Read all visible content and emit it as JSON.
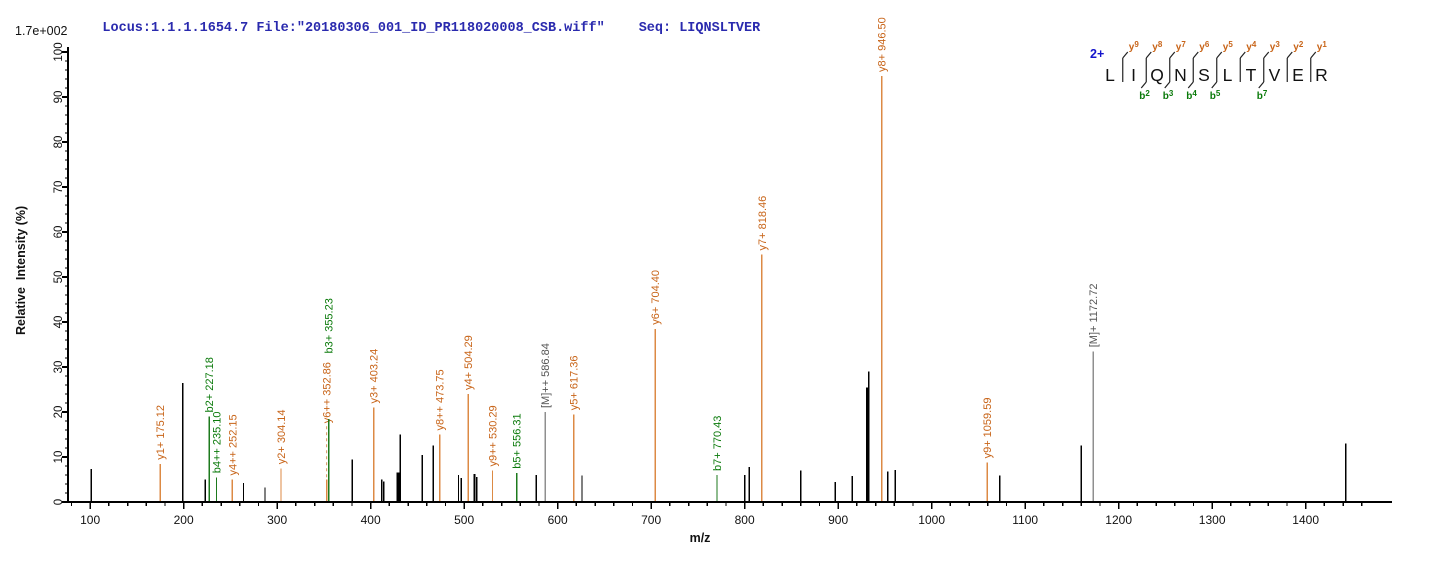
{
  "header": {
    "locus_file": "Locus:1.1.1.1654.7 File:\"20180306_001_ID_PR118020008_CSB.wiff\"",
    "seq_label": "Seq: LIQNSLTVER"
  },
  "scale_note": "1.7e+002",
  "colors": {
    "header_text": "#2a2aae",
    "y_ion_label": "#c86418",
    "y_ion_line": "#dc8a44",
    "b_ion_label": "#0a7a0a",
    "b_ion_line": "#1d7a1d",
    "unassigned_line": "#000000",
    "precursor_label": "#555555",
    "precursor_line": "#8f8f8f",
    "axis": "#000000",
    "charge_label": "#1414cc",
    "residue_text": "#111111"
  },
  "sequence_annotation": {
    "charge": "2+",
    "residues": [
      "L",
      "I",
      "Q",
      "N",
      "S",
      "L",
      "T",
      "V",
      "E",
      "R"
    ],
    "gaps": [
      {
        "y": {
          "ion": "y",
          "num": "9"
        }
      },
      {
        "y": {
          "ion": "y",
          "num": "8"
        },
        "b": {
          "ion": "b",
          "num": "2"
        }
      },
      {
        "y": {
          "ion": "y",
          "num": "7"
        },
        "b": {
          "ion": "b",
          "num": "3"
        }
      },
      {
        "y": {
          "ion": "y",
          "num": "6"
        },
        "b": {
          "ion": "b",
          "num": "4"
        }
      },
      {
        "y": {
          "ion": "y",
          "num": "5"
        },
        "b": {
          "ion": "b",
          "num": "5"
        }
      },
      {
        "y": {
          "ion": "y",
          "num": "4"
        }
      },
      {
        "y": {
          "ion": "y",
          "num": "3"
        },
        "b": {
          "ion": "b",
          "num": "7"
        }
      },
      {
        "y": {
          "ion": "y",
          "num": "2"
        }
      },
      {
        "y": {
          "ion": "y",
          "num": "1"
        }
      }
    ]
  },
  "chart_data": {
    "type": "bar",
    "subtype": "ms2-stick-spectrum",
    "title": "",
    "xlabel": "m/z",
    "ylabel": "Relative  Intensity (%)",
    "absolute_scale": "1.7e+002",
    "xlim": [
      87,
      1487
    ],
    "ylim": [
      0,
      100
    ],
    "x_ticks_major": [
      100,
      200,
      300,
      400,
      500,
      600,
      700,
      800,
      900,
      1000,
      1100,
      1200,
      1300,
      1400
    ],
    "x_minor_step": 20,
    "x_minor_start": 80,
    "x_minor_end": 1460,
    "y_ticks_major": [
      0,
      10,
      20,
      30,
      40,
      50,
      60,
      70,
      80,
      90,
      100
    ],
    "y_minor_step": 2,
    "grid": false,
    "legend": false,
    "peaks": [
      {
        "mz": 101,
        "pct": 7.3,
        "s": "u"
      },
      {
        "mz": 175.12,
        "pct": 8.5,
        "s": "y",
        "label": "y1+ 175.12"
      },
      {
        "mz": 199,
        "pct": 26.5,
        "s": "u"
      },
      {
        "mz": 223,
        "pct": 5,
        "s": "u"
      },
      {
        "mz": 227.18,
        "pct": 19,
        "s": "b",
        "label": "b2+ 227.18"
      },
      {
        "mz": 235.1,
        "pct": 5.5,
        "s": "b",
        "label": "b4++ 235.10"
      },
      {
        "mz": 252.15,
        "pct": 5,
        "s": "y",
        "label": "y4++ 252.15"
      },
      {
        "mz": 264,
        "pct": 4.2,
        "s": "u"
      },
      {
        "mz": 287,
        "pct": 3.2,
        "s": "u"
      },
      {
        "mz": 304.14,
        "pct": 7.5,
        "s": "y",
        "label": "y2+ 304.14"
      },
      {
        "mz": 352.86,
        "pct": 5,
        "s": "y",
        "label": "y6++ 352.86",
        "label_bottom_pct": 17.5,
        "dashed_leader": true
      },
      {
        "mz": 355.23,
        "pct": 18.5,
        "s": "b",
        "label": "b3+ 355.23",
        "label_bottom_pct": 33
      },
      {
        "mz": 380.5,
        "pct": 9.5,
        "s": "u"
      },
      {
        "mz": 403.24,
        "pct": 21,
        "s": "y",
        "label": "y3+ 403.24"
      },
      {
        "mz": 412,
        "pct": 5,
        "s": "u"
      },
      {
        "mz": 414,
        "pct": 4.6,
        "s": "u"
      },
      {
        "mz": 428.5,
        "pct": 6.6,
        "s": "u",
        "w": 2
      },
      {
        "mz": 430,
        "pct": 6.6,
        "s": "u",
        "w": 2
      },
      {
        "mz": 431.5,
        "pct": 15,
        "s": "u"
      },
      {
        "mz": 455,
        "pct": 10.5,
        "s": "u"
      },
      {
        "mz": 467,
        "pct": 12.6,
        "s": "u"
      },
      {
        "mz": 473.75,
        "pct": 15,
        "s": "y",
        "label": "y8++ 473.75"
      },
      {
        "mz": 494,
        "pct": 6,
        "s": "u"
      },
      {
        "mz": 497,
        "pct": 5.3,
        "s": "u"
      },
      {
        "mz": 504.29,
        "pct": 24,
        "s": "y",
        "label": "y4+ 504.29"
      },
      {
        "mz": 511,
        "pct": 6.2,
        "s": "u",
        "w": 2
      },
      {
        "mz": 513.5,
        "pct": 5.6,
        "s": "u"
      },
      {
        "mz": 530.29,
        "pct": 7,
        "s": "y",
        "label": "y9++ 530.29"
      },
      {
        "mz": 556.31,
        "pct": 6.5,
        "s": "b",
        "label": "b5+ 556.31"
      },
      {
        "mz": 577,
        "pct": 6,
        "s": "u"
      },
      {
        "mz": 586.84,
        "pct": 20,
        "s": "p",
        "label": "[M]++ 586.84"
      },
      {
        "mz": 617.36,
        "pct": 19.5,
        "s": "y",
        "label": "y5+ 617.36"
      },
      {
        "mz": 626,
        "pct": 5.9,
        "s": "u"
      },
      {
        "mz": 704.4,
        "pct": 38.5,
        "s": "y",
        "label": "y6+ 704.40"
      },
      {
        "mz": 770.43,
        "pct": 6,
        "s": "b",
        "label": "b7+ 770.43"
      },
      {
        "mz": 800,
        "pct": 6,
        "s": "u"
      },
      {
        "mz": 805,
        "pct": 7.8,
        "s": "u"
      },
      {
        "mz": 818.46,
        "pct": 55,
        "s": "y",
        "label": "y7+ 818.46"
      },
      {
        "mz": 860,
        "pct": 7,
        "s": "u"
      },
      {
        "mz": 897,
        "pct": 4.5,
        "s": "u"
      },
      {
        "mz": 915,
        "pct": 5.8,
        "s": "u"
      },
      {
        "mz": 931,
        "pct": 25.5,
        "s": "u",
        "w": 2
      },
      {
        "mz": 932.8,
        "pct": 29,
        "s": "u"
      },
      {
        "mz": 946.5,
        "pct": 100,
        "s": "y",
        "label": "y8+ 946.50"
      },
      {
        "mz": 953,
        "pct": 6.8,
        "s": "u"
      },
      {
        "mz": 961,
        "pct": 7.1,
        "s": "u"
      },
      {
        "mz": 1059.59,
        "pct": 8.8,
        "s": "y",
        "label": "y9+ 1059.59"
      },
      {
        "mz": 1073,
        "pct": 5.9,
        "s": "u"
      },
      {
        "mz": 1160,
        "pct": 12.6,
        "s": "u"
      },
      {
        "mz": 1172.72,
        "pct": 33.5,
        "s": "p",
        "label": "[M]+ 1172.72"
      },
      {
        "mz": 1443,
        "pct": 13,
        "s": "u"
      }
    ]
  }
}
